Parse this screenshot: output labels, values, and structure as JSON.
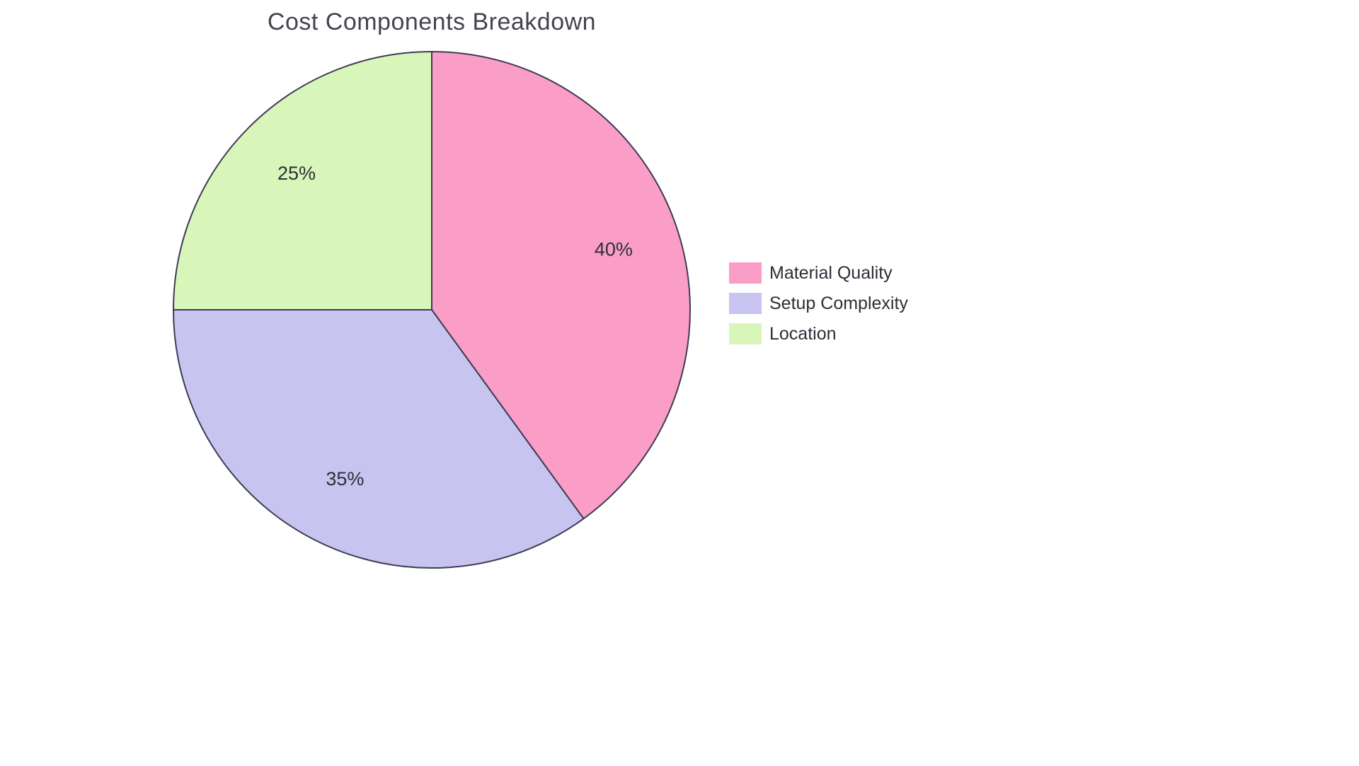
{
  "chart_data": {
    "type": "pie",
    "title": "Cost Components Breakdown",
    "labels": [
      "Material Quality",
      "Setup Complexity",
      "Location"
    ],
    "values": [
      40,
      35,
      25
    ],
    "percent_labels": [
      "40%",
      "35%",
      "25%"
    ],
    "colors": [
      "#FA9EC7",
      "#C7C4F0",
      "#D8F6B9"
    ],
    "slice_border_color": "#3E3B54",
    "label_text_color": "#2f2e3a",
    "legend_position": "right",
    "start_angle_deg": 0,
    "direction": "clockwise",
    "grid": false
  }
}
